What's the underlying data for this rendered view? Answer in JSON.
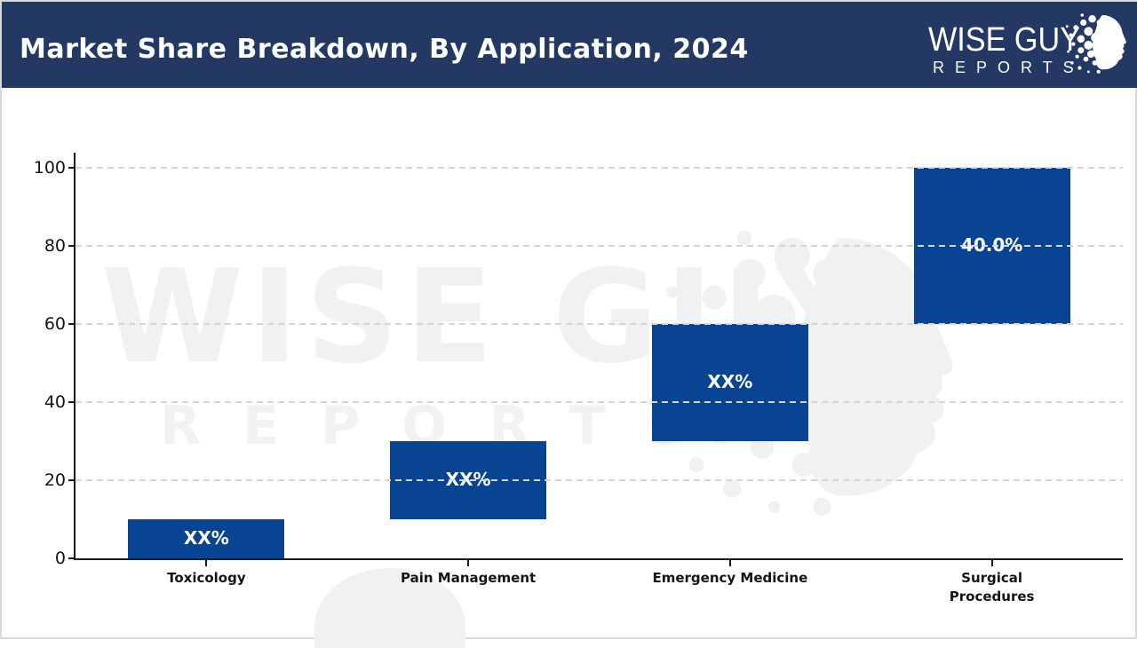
{
  "header": {
    "title": "Market Share Breakdown, By Application, 2024",
    "logo": {
      "line1": "WISE GUY",
      "line2": "REPORTS"
    }
  },
  "watermark": {
    "line1": "WISE GUY",
    "line2": "REPORTS"
  },
  "colors": {
    "header_bg": "#233964",
    "bar_blue": "#084492",
    "bar_label": "#ffffff",
    "grid": "#d6d6d6",
    "axis": "#1a1a1a",
    "watermark": "#f1f1f4"
  },
  "chart_data": {
    "type": "bar",
    "subtype": "floating-waterfall",
    "title": "Market Share Breakdown, By Application, 2024",
    "categories": [
      "Toxicology",
      "Pain Management",
      "Emergency Medicine",
      "Surgical Procedures"
    ],
    "display_categories": [
      "Toxicology",
      "Pain Management",
      "Emergency Medicine",
      "Surgical\nProcedures"
    ],
    "segments": [
      {
        "category": "Toxicology",
        "start": 0,
        "end": 10,
        "value_label": "XX%"
      },
      {
        "category": "Pain Management",
        "start": 10,
        "end": 30,
        "value_label": "XX%"
      },
      {
        "category": "Emergency Medicine",
        "start": 30,
        "end": 60,
        "value_label": "XX%"
      },
      {
        "category": "Surgical Procedures",
        "start": 60,
        "end": 100,
        "value_label": "40.0%"
      }
    ],
    "unit": "%",
    "yticks": [
      0,
      20,
      40,
      60,
      80,
      100
    ],
    "ylim": [
      0,
      105
    ],
    "xlabel": "",
    "ylabel": "",
    "grid": "horizontal-dashed",
    "grid_above_bars": true,
    "legend": "none"
  }
}
